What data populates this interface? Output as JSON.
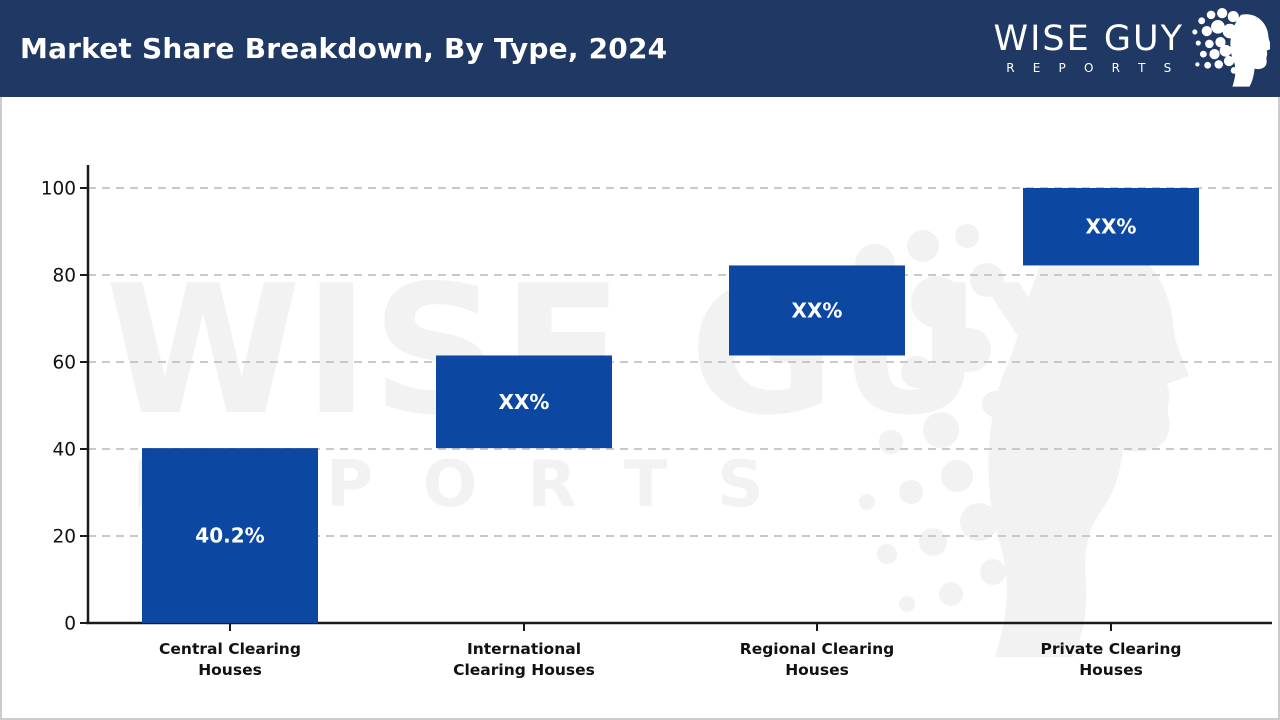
{
  "header": {
    "title": "Market Share Breakdown, By Type, 2024",
    "logo": {
      "line1": "WISE GUY",
      "line2": "REPORTS"
    }
  },
  "watermark": {
    "line1": "WISE GUY",
    "line2": "REPORTS"
  },
  "chart_data": {
    "type": "bar",
    "subtype": "waterfall",
    "title": "Market Share Breakdown, By Type, 2024",
    "categories": [
      "Central Clearing Houses",
      "International Clearing Houses",
      "Regional Clearing Houses",
      "Private Clearing Houses"
    ],
    "category_lines": [
      [
        "Central Clearing",
        "Houses"
      ],
      [
        "International",
        "Clearing Houses"
      ],
      [
        "Regional Clearing",
        "Houses"
      ],
      [
        "Private Clearing",
        "Houses"
      ]
    ],
    "segments": [
      {
        "category": "Central Clearing Houses",
        "start": 0,
        "end": 40.2,
        "label": "40.2%"
      },
      {
        "category": "International Clearing Houses",
        "start": 40.2,
        "end": 61.5,
        "label": "XX%"
      },
      {
        "category": "Regional Clearing Houses",
        "start": 61.5,
        "end": 82.2,
        "label": "XX%"
      },
      {
        "category": "Private Clearing Houses",
        "start": 82.2,
        "end": 100,
        "label": "XX%"
      }
    ],
    "yticks": [
      0,
      20,
      40,
      60,
      80,
      100
    ],
    "ylim": [
      0,
      100
    ],
    "xlabel": "",
    "ylabel": "",
    "grid": true,
    "grid_style": "dashed-horizontal",
    "legend": false
  },
  "colors": {
    "header_bg": "#1f3864",
    "bar": "#0c47a1",
    "axis": "#1a1a1a",
    "grid": "#c9c9c9",
    "tick_label": "#111111",
    "value_label": "#ffffff",
    "watermark": "#f2f2f3",
    "border": "#cccccc"
  }
}
